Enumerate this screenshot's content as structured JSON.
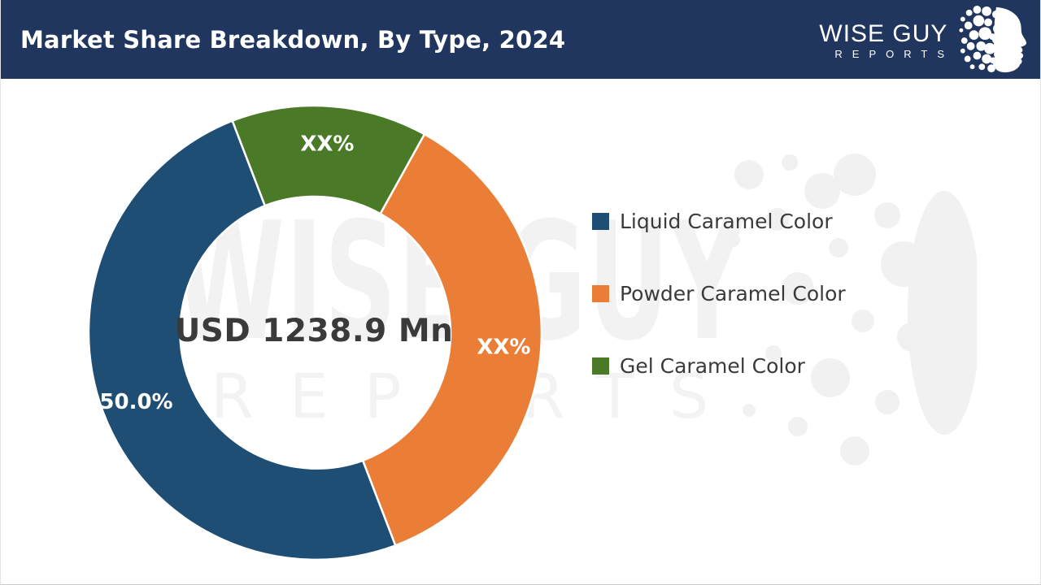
{
  "header": {
    "title": "Market Share Breakdown, By Type, 2024",
    "logo": {
      "name_top": "WISE GUY",
      "name_bottom": "REPORTS"
    }
  },
  "watermark": {
    "line1": "WISE GUY",
    "line2": "REPORTS"
  },
  "chart_data": {
    "type": "pie",
    "variant": "donut",
    "title": "Market Share Breakdown, By Type, 2024",
    "center_label": "USD 1238.9 Mn",
    "start_angle_deg": 111,
    "direction": "counterclockwise",
    "inner_radius_ratio": 0.6,
    "legend_position": "right",
    "segments": [
      {
        "label": "Liquid Caramel Color",
        "value_label": "50.0%",
        "percent": 50.0,
        "color": "#1F4E75"
      },
      {
        "label": "Powder Caramel Color",
        "value_label": "XX%",
        "percent": 36.1,
        "color": "#EA7E37"
      },
      {
        "label": "Gel Caramel Color",
        "value_label": "XX%",
        "percent": 13.9,
        "color": "#4A7A28"
      }
    ]
  },
  "colors": {
    "header_bg": "#21365F",
    "text_dark": "#3A3A3A",
    "watermark": "#F2F2F2"
  }
}
